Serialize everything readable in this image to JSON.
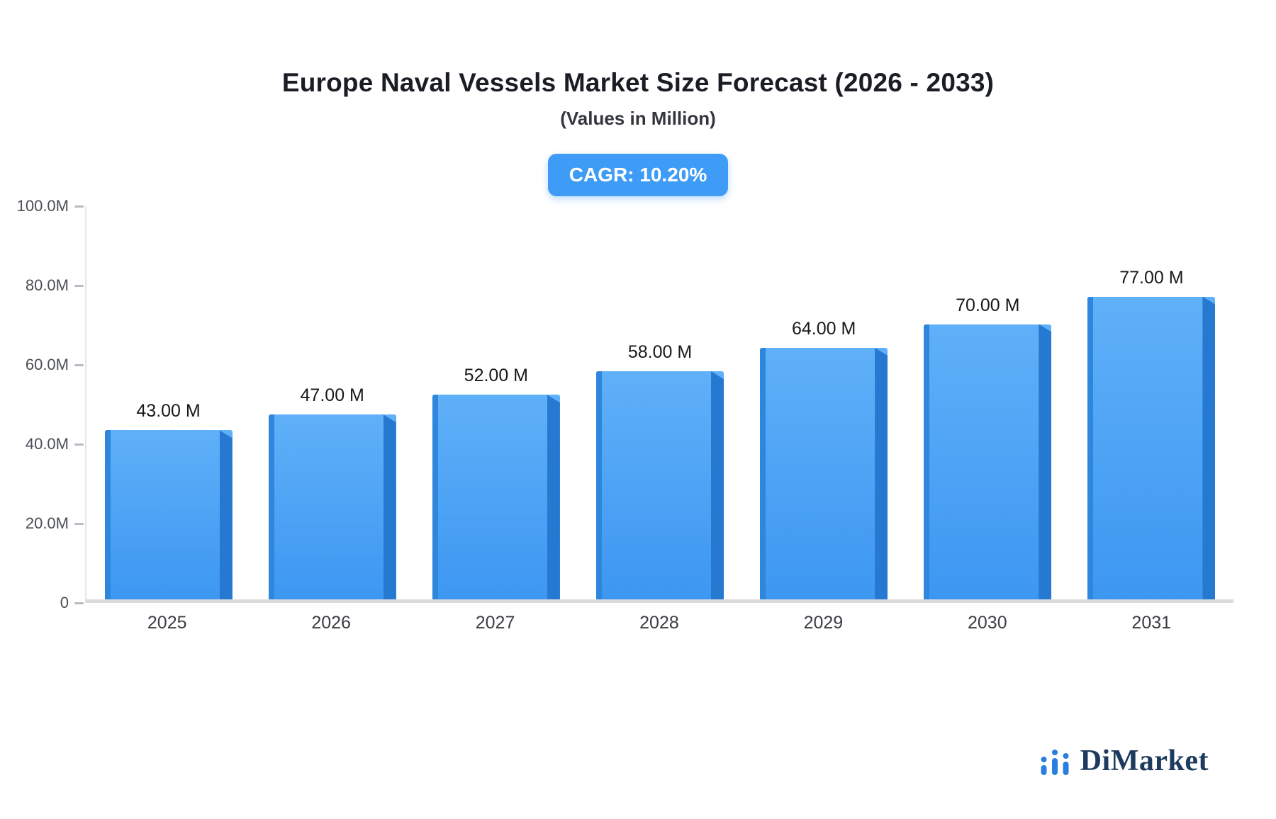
{
  "chart_data": {
    "type": "bar",
    "title": "Europe Naval Vessels Market Size Forecast (2026 - 2033)",
    "subtitle": "(Values in Million)",
    "badge_label": "CAGR: 10.20%",
    "categories": [
      "2025",
      "2026",
      "2027",
      "2028",
      "2029",
      "2030",
      "2031"
    ],
    "values": [
      43,
      47,
      52,
      58,
      64,
      70,
      77
    ],
    "value_labels": [
      "43.00 M",
      "47.00 M",
      "52.00 M",
      "58.00 M",
      "64.00 M",
      "70.00 M",
      "77.00 M"
    ],
    "unit": "Million",
    "ylim": [
      0,
      100
    ],
    "yticks": {
      "values": [
        0,
        20,
        40,
        60,
        80,
        100
      ],
      "labels": [
        "0",
        "20.0M",
        "40.0M",
        "60.0M",
        "80.0M",
        "100.0M"
      ]
    },
    "grid": false,
    "legend": "none",
    "colors": {
      "bar": "#3f9df5",
      "bar_side": "#2679d0",
      "badge_bg": "#3f9cf6",
      "badge_text": "#ffffff",
      "axis": "#d9dbdd",
      "title_text": "#1a1d24"
    }
  },
  "logo": {
    "brand": "DiMarket",
    "icon": "mini-bar-chart-icon",
    "text_color": "#1d3a5f",
    "icon_color": "#2b7de0"
  }
}
